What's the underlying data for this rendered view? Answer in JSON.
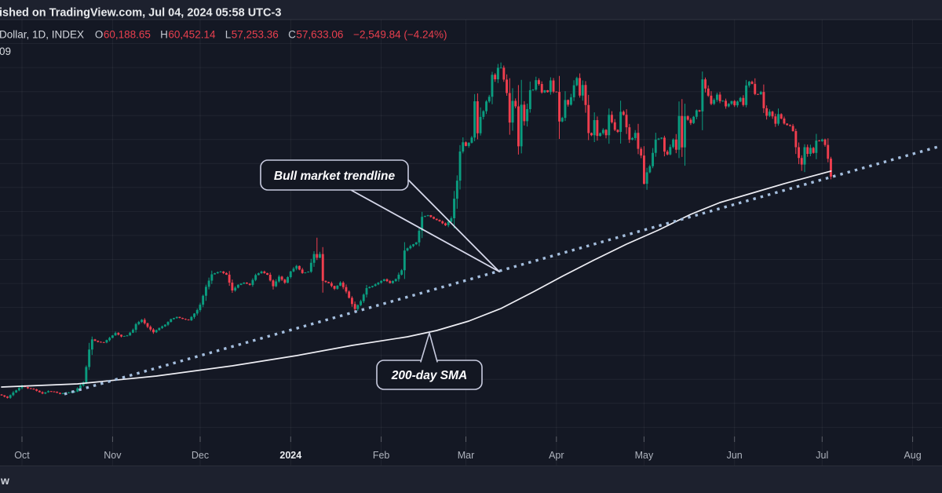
{
  "header": {
    "published_line": "ished on TradingView.com, Jul 04, 2024 05:58 UTC-3",
    "symbol_line": "Dollar, 1D, INDEX",
    "legend": {
      "ohlc": [
        {
          "k": "O",
          "v": "60,188.65"
        },
        {
          "k": "H",
          "v": "60,452.14"
        },
        {
          "k": "L",
          "v": "57,253.36"
        },
        {
          "k": "C",
          "v": "57,633.06"
        }
      ],
      "change": "−2,549.84 (−4.24%)"
    },
    "partial_value": "09"
  },
  "annotations": {
    "bull_label": "Bull market trendline",
    "sma_label": "200-day SMA"
  },
  "footer": {
    "watermark": "w"
  },
  "chart_data": {
    "type": "candlestick",
    "title": "Dollar, 1D, INDEX",
    "timeframe": "1D",
    "price_scale_visible": false,
    "legend_last_bar_change": "−2,549.84 (−4.24%)",
    "colors": {
      "up": "#0a9c7f",
      "down": "#ef3e4e",
      "sma": "#eeeef4",
      "trendline": "#a4bede",
      "grid": "rgba(255,255,255,0.055)",
      "background": "#141824",
      "strip": "#1d212e"
    },
    "x_axis": {
      "months": [
        {
          "label": "Oct",
          "day": 7,
          "bold": false
        },
        {
          "label": "Nov",
          "day": 38,
          "bold": false
        },
        {
          "label": "Dec",
          "day": 68,
          "bold": false
        },
        {
          "label": "2024",
          "day": 99,
          "bold": true
        },
        {
          "label": "Feb",
          "day": 130,
          "bold": false
        },
        {
          "label": "Mar",
          "day": 159,
          "bold": false
        },
        {
          "label": "Apr",
          "day": 190,
          "bold": false
        },
        {
          "label": "May",
          "day": 220,
          "bold": false
        },
        {
          "label": "Jun",
          "day": 251,
          "bold": false
        },
        {
          "label": "Jul",
          "day": 281,
          "bold": false
        },
        {
          "label": "Aug",
          "day": 312,
          "bold": false
        }
      ]
    },
    "last_bar": {
      "o": 60188.65,
      "h": 60452.14,
      "l": 57253.36,
      "c": 57633.06
    },
    "high_overrides": {
      "108": 48970,
      "171": 73830
    },
    "low_overrides": {
      "177": 60770,
      "220": 56520,
      "274": 58460
    },
    "close_anchors": [
      [
        0,
        26600
      ],
      [
        2,
        26250
      ],
      [
        4,
        27000
      ],
      [
        7,
        27950
      ],
      [
        9,
        27600
      ],
      [
        11,
        27450
      ],
      [
        14,
        26850
      ],
      [
        16,
        27200
      ],
      [
        18,
        27100
      ],
      [
        20,
        26800
      ],
      [
        22,
        26950
      ],
      [
        25,
        27150
      ],
      [
        27,
        28000
      ],
      [
        28,
        28420
      ],
      [
        29,
        30620
      ],
      [
        30,
        33100
      ],
      [
        31,
        34530
      ],
      [
        33,
        34180
      ],
      [
        35,
        34100
      ],
      [
        37,
        34750
      ],
      [
        39,
        35450
      ],
      [
        41,
        34950
      ],
      [
        43,
        35100
      ],
      [
        45,
        35900
      ],
      [
        46,
        36700
      ],
      [
        48,
        37320
      ],
      [
        50,
        36330
      ],
      [
        52,
        35550
      ],
      [
        54,
        36160
      ],
      [
        56,
        36620
      ],
      [
        58,
        37420
      ],
      [
        60,
        37720
      ],
      [
        62,
        37450
      ],
      [
        64,
        37250
      ],
      [
        65,
        37720
      ],
      [
        67,
        38700
      ],
      [
        68,
        39470
      ],
      [
        70,
        41990
      ],
      [
        72,
        43770
      ],
      [
        74,
        44080
      ],
      [
        75,
        44170
      ],
      [
        77,
        43720
      ],
      [
        79,
        41480
      ],
      [
        81,
        42270
      ],
      [
        83,
        42600
      ],
      [
        85,
        42270
      ],
      [
        87,
        43670
      ],
      [
        89,
        44170
      ],
      [
        91,
        43710
      ],
      [
        93,
        42080
      ],
      [
        95,
        43440
      ],
      [
        97,
        42580
      ],
      [
        99,
        44180
      ],
      [
        101,
        44960
      ],
      [
        103,
        43940
      ],
      [
        105,
        44150
      ],
      [
        107,
        46650
      ],
      [
        108,
        46120
      ],
      [
        109,
        46650
      ],
      [
        110,
        42850
      ],
      [
        112,
        42510
      ],
      [
        114,
        41720
      ],
      [
        116,
        42600
      ],
      [
        118,
        41330
      ],
      [
        120,
        39550
      ],
      [
        121,
        38850
      ],
      [
        123,
        39970
      ],
      [
        125,
        41820
      ],
      [
        127,
        42120
      ],
      [
        129,
        42580
      ],
      [
        131,
        43080
      ],
      [
        133,
        42540
      ],
      [
        135,
        43100
      ],
      [
        137,
        44350
      ],
      [
        138,
        47150
      ],
      [
        140,
        47780
      ],
      [
        142,
        48300
      ],
      [
        143,
        49960
      ],
      [
        144,
        51940
      ],
      [
        146,
        52160
      ],
      [
        148,
        51660
      ],
      [
        150,
        51280
      ],
      [
        152,
        50740
      ],
      [
        154,
        51730
      ],
      [
        155,
        54500
      ],
      [
        156,
        57070
      ],
      [
        157,
        61200
      ],
      [
        158,
        62500
      ],
      [
        159,
        61990
      ],
      [
        160,
        62440
      ],
      [
        161,
        63170
      ],
      [
        162,
        68330
      ],
      [
        163,
        63800
      ],
      [
        164,
        66110
      ],
      [
        165,
        66930
      ],
      [
        166,
        68300
      ],
      [
        167,
        68960
      ],
      [
        168,
        72080
      ],
      [
        169,
        71450
      ],
      [
        170,
        73080
      ],
      [
        171,
        73100
      ],
      [
        172,
        71400
      ],
      [
        173,
        69500
      ],
      [
        174,
        65310
      ],
      [
        175,
        68390
      ],
      [
        176,
        67610
      ],
      [
        177,
        61940
      ],
      [
        178,
        67840
      ],
      [
        179,
        65500
      ],
      [
        180,
        67210
      ],
      [
        181,
        69900
      ],
      [
        182,
        69990
      ],
      [
        183,
        71330
      ],
      [
        184,
        70780
      ],
      [
        185,
        69580
      ],
      [
        186,
        69890
      ],
      [
        187,
        69640
      ],
      [
        188,
        71280
      ],
      [
        189,
        69700
      ],
      [
        190,
        69650
      ],
      [
        191,
        65450
      ],
      [
        192,
        65980
      ],
      [
        193,
        68510
      ],
      [
        194,
        67840
      ],
      [
        195,
        68900
      ],
      [
        196,
        70600
      ],
      [
        197,
        71630
      ],
      [
        198,
        69140
      ],
      [
        199,
        70630
      ],
      [
        200,
        67800
      ],
      [
        201,
        63820
      ],
      [
        202,
        63510
      ],
      [
        203,
        65660
      ],
      [
        204,
        63420
      ],
      [
        205,
        63810
      ],
      [
        206,
        64280
      ],
      [
        207,
        63510
      ],
      [
        208,
        66410
      ],
      [
        210,
        64280
      ],
      [
        211,
        63990
      ],
      [
        212,
        66840
      ],
      [
        213,
        66400
      ],
      [
        215,
        62880
      ],
      [
        216,
        63110
      ],
      [
        217,
        63840
      ],
      [
        218,
        61580
      ],
      [
        219,
        60630
      ],
      [
        220,
        56620
      ],
      [
        221,
        58250
      ],
      [
        222,
        59120
      ],
      [
        224,
        62900
      ],
      [
        226,
        63160
      ],
      [
        227,
        61190
      ],
      [
        228,
        60790
      ],
      [
        230,
        62890
      ],
      [
        231,
        61450
      ],
      [
        232,
        66250
      ],
      [
        233,
        61790
      ],
      [
        234,
        66200
      ],
      [
        236,
        65230
      ],
      [
        238,
        67050
      ],
      [
        239,
        66890
      ],
      [
        240,
        71440
      ],
      [
        241,
        70150
      ],
      [
        242,
        69120
      ],
      [
        243,
        67970
      ],
      [
        244,
        68530
      ],
      [
        245,
        69280
      ],
      [
        246,
        68340
      ],
      [
        247,
        68400
      ],
      [
        248,
        67600
      ],
      [
        250,
        68350
      ],
      [
        251,
        67760
      ],
      [
        253,
        68810
      ],
      [
        254,
        67800
      ],
      [
        255,
        70570
      ],
      [
        256,
        71100
      ],
      [
        257,
        70790
      ],
      [
        258,
        69350
      ],
      [
        259,
        69310
      ],
      [
        260,
        69650
      ],
      [
        261,
        67340
      ],
      [
        262,
        66270
      ],
      [
        263,
        66850
      ],
      [
        264,
        66190
      ],
      [
        265,
        65140
      ],
      [
        266,
        66500
      ],
      [
        267,
        65880
      ],
      [
        268,
        65170
      ],
      [
        269,
        64960
      ],
      [
        270,
        64830
      ],
      [
        271,
        64100
      ],
      [
        272,
        61810
      ],
      [
        273,
        60270
      ],
      [
        274,
        59350
      ],
      [
        275,
        61810
      ],
      [
        276,
        60870
      ],
      [
        277,
        61710
      ],
      [
        278,
        61000
      ],
      [
        279,
        62750
      ],
      [
        280,
        62680
      ],
      [
        281,
        62900
      ],
      [
        282,
        62130
      ],
      [
        283,
        60170
      ],
      [
        284,
        57633
      ]
    ],
    "sma_200d": [
      [
        0,
        27780
      ],
      [
        26,
        28230
      ],
      [
        53,
        29340
      ],
      [
        79,
        30790
      ],
      [
        101,
        32240
      ],
      [
        120,
        33680
      ],
      [
        139,
        34910
      ],
      [
        149,
        35800
      ],
      [
        160,
        37140
      ],
      [
        171,
        38920
      ],
      [
        182,
        41260
      ],
      [
        192,
        43490
      ],
      [
        203,
        45830
      ],
      [
        214,
        48060
      ],
      [
        225,
        50060
      ],
      [
        236,
        52290
      ],
      [
        246,
        53960
      ],
      [
        257,
        55300
      ],
      [
        268,
        56640
      ],
      [
        276,
        57530
      ],
      [
        284,
        58430
      ]
    ],
    "trendline": {
      "d1": 21.5,
      "p1": 26780,
      "d2": 321.6,
      "p2": 61980
    }
  }
}
